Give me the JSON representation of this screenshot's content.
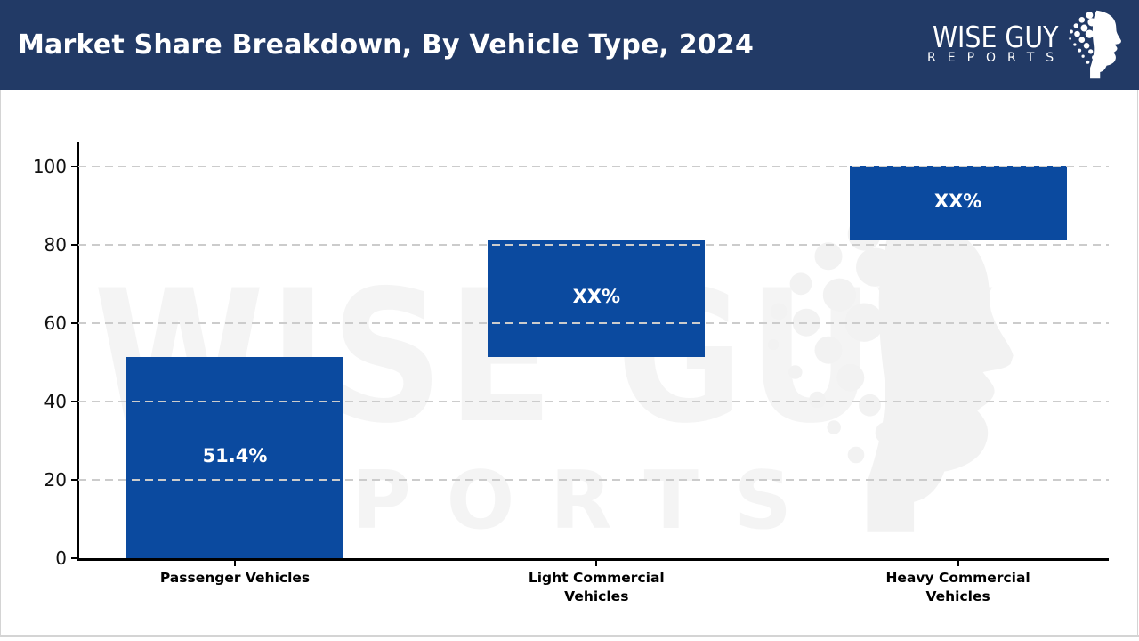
{
  "header": {
    "title": "Market Share Breakdown, By Vehicle Type, 2024",
    "logo": {
      "name_line": "WISE GUY",
      "sub_line": "REPORTS"
    }
  },
  "watermark": {
    "name_line": "WISE GUY",
    "sub_line": "REPORTS"
  },
  "chart_data": {
    "type": "bar",
    "subtype": "segmented-percentage-waterfall",
    "title": "Market Share Breakdown, By Vehicle Type, 2024",
    "categories": [
      "Passenger Vehicles",
      "Light Commercial Vehicles",
      "Heavy Commercial Vehicles"
    ],
    "x_tick_labels": [
      [
        "Passenger Vehicles"
      ],
      [
        "Light Commercial",
        "Vehicles"
      ],
      [
        "Heavy Commercial",
        "Vehicles"
      ]
    ],
    "segments": [
      {
        "category": "Passenger Vehicles",
        "start": 0,
        "end": 51.4,
        "value_label": "51.4%"
      },
      {
        "category": "Light Commercial Vehicles",
        "start": 51.4,
        "end": 81,
        "value_label": "XX%"
      },
      {
        "category": "Heavy Commercial Vehicles",
        "start": 81,
        "end": 100,
        "value_label": "XX%"
      }
    ],
    "yticks": [
      0,
      20,
      40,
      60,
      80,
      100
    ],
    "ylim": [
      0,
      106
    ],
    "xlabel": "",
    "ylabel": "",
    "grid": "dashed-horizontal-above-bars",
    "legend": null,
    "bar_color": "#0b4a9f",
    "bar_label_color": "#ffffff",
    "axis_color": "#000000",
    "grid_color": "#cccccc"
  }
}
